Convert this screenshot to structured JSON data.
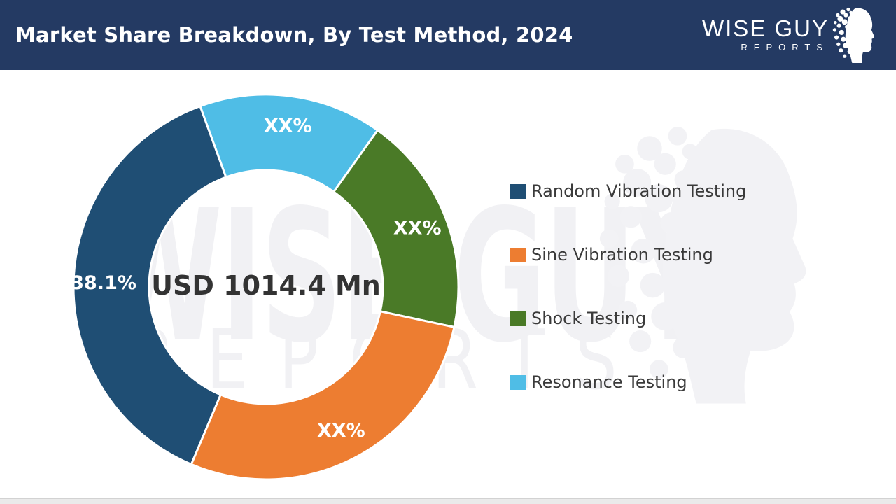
{
  "header": {
    "title": "Market Share Breakdown, By Test Method, 2024",
    "logo": {
      "line1": "WISE GUY",
      "line2": "REPORTS"
    }
  },
  "watermark": {
    "line1": "WISE GUY",
    "line2": "REPORTS"
  },
  "chart_data": {
    "type": "donut",
    "title": "Market Share Breakdown, By Test Method, 2024",
    "center_label": "USD 1014.4 Mn",
    "start_angle_deg": -20,
    "inner_radius_ratio": 0.607,
    "grid": false,
    "legend_position": "right",
    "segments": [
      {
        "name": "Resonance Testing",
        "sweep_pct": 15.4,
        "data_label": "XX%",
        "color": "#4FBDE6"
      },
      {
        "name": "Shock Testing",
        "sweep_pct": 18.5,
        "data_label": "XX%",
        "color": "#4A7A27"
      },
      {
        "name": "Sine Vibration Testing",
        "sweep_pct": 28.0,
        "data_label": "XX%",
        "color": "#ED7D31"
      },
      {
        "name": "Random Vibration Testing",
        "sweep_pct": 38.1,
        "data_label": "38.1%",
        "color": "#1F4E74"
      }
    ],
    "legend_items": [
      {
        "label": "Random Vibration Testing",
        "color": "#1F4E74"
      },
      {
        "label": "Sine Vibration Testing",
        "color": "#ED7D31"
      },
      {
        "label": "Shock Testing",
        "color": "#4A7A27"
      },
      {
        "label": "Resonance Testing",
        "color": "#4FBDE6"
      }
    ],
    "colors": {
      "header_bg": "#243A63",
      "label_text": "#ffffff",
      "center_text": "#333333",
      "watermark": "#f1f1f4"
    }
  }
}
